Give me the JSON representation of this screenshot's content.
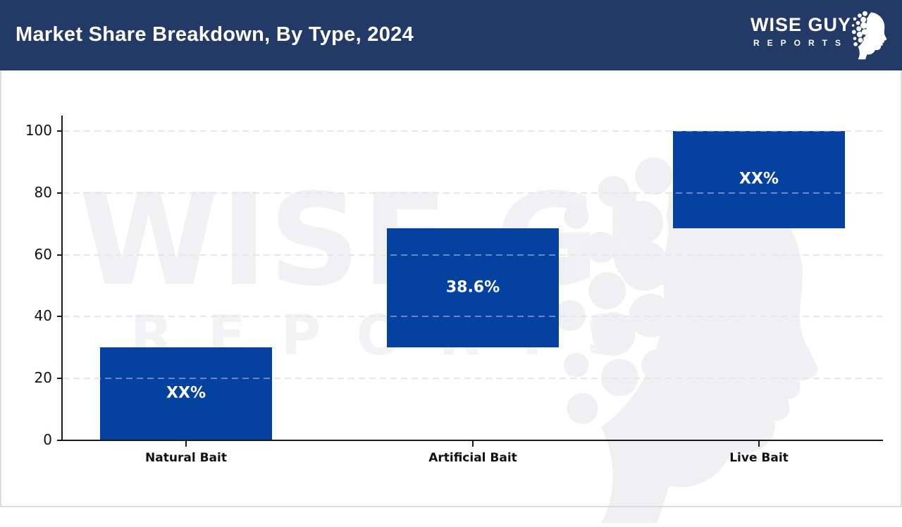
{
  "header": {
    "title": "Market Share Breakdown, By Type, 2024",
    "brand": {
      "line1": "WISE GUY",
      "line2": "REPORTS"
    }
  },
  "watermark": {
    "line1": "WISE GUY",
    "line2": "REPORTS"
  },
  "colors": {
    "header_bg": "#233a66",
    "bar": "#05419e",
    "bar_label": "#ffffff",
    "gridline": "#d8d8d8",
    "axis": "#1a1a1a",
    "watermark": "#f1f1f3"
  },
  "chart_data": {
    "type": "bar",
    "subtype": "floating-breakdown",
    "title": "Market Share Breakdown, By Type, 2024",
    "categories": [
      "Natural Bait",
      "Artificial Bait",
      "Live Bait"
    ],
    "bars": [
      {
        "category": "Natural Bait",
        "start": 0,
        "end": 30,
        "label": "XX%"
      },
      {
        "category": "Artificial Bait",
        "start": 30,
        "end": 68.6,
        "label": "38.6%"
      },
      {
        "category": "Live Bait",
        "start": 68.6,
        "end": 100,
        "label": "XX%"
      }
    ],
    "ylabel": "",
    "xlabel": "",
    "ylim": [
      0,
      100
    ],
    "yticks": [
      0,
      20,
      40,
      60,
      80,
      100
    ],
    "grid": "dashed-horizontal",
    "legend": "none"
  }
}
